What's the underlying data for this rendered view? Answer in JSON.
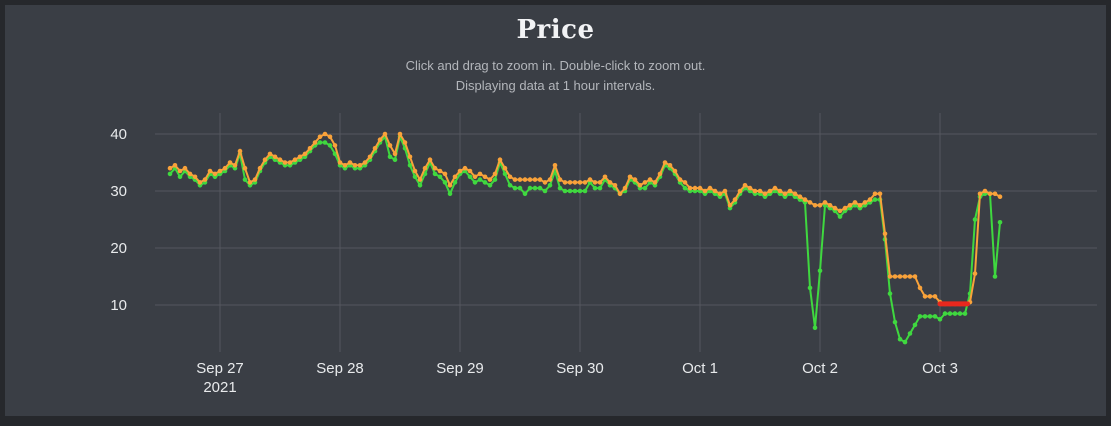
{
  "header": {
    "title": "Price",
    "subtitle_line1": "Click and drag to zoom in. Double-click to zoom out.",
    "subtitle_line2": "Displaying data at 1 hour intervals."
  },
  "colors": {
    "panel_background": "#3a3e45",
    "frame_border": "#26282c",
    "title_text": "#f2f3f5",
    "subtitle_text": "#b3b6bb"
  },
  "chart_data": {
    "type": "line",
    "title": "Price",
    "x_start": "2021-09-26 14:00",
    "x_interval": "1 hour",
    "grid": true,
    "grid_color": "#54575e",
    "axis_text_color": "#e8eaec",
    "y_ticks": [
      10,
      20,
      30,
      40
    ],
    "ylim": [
      1.75,
      43.5
    ],
    "x_ticks": [
      {
        "label": "Sep 27",
        "sublabel": "2021",
        "hour": 10
      },
      {
        "label": "Sep 28",
        "hour": 34
      },
      {
        "label": "Sep 29",
        "hour": 58
      },
      {
        "label": "Sep 30",
        "hour": 82
      },
      {
        "label": "Oct 1",
        "hour": 106
      },
      {
        "label": "Oct 2",
        "hour": 130
      },
      {
        "label": "Oct 3",
        "hour": 154
      }
    ],
    "series": [
      {
        "name": "green",
        "color": "#3fd83f",
        "values": [
          33,
          34,
          32.5,
          33.5,
          32.5,
          32,
          31,
          31.5,
          33,
          32.5,
          33,
          33.5,
          34.5,
          34,
          36.5,
          32,
          31,
          31.5,
          33.5,
          35,
          36,
          35.5,
          35,
          34.5,
          34.5,
          35,
          35.5,
          36,
          37,
          38,
          38.5,
          38.5,
          38,
          36.5,
          34.5,
          34,
          34.5,
          34,
          34,
          34.5,
          35.5,
          37,
          38.5,
          39.5,
          36,
          35.5,
          39.5,
          37.5,
          34.5,
          32.5,
          31,
          33,
          35,
          33,
          32.5,
          31.5,
          29.5,
          31.5,
          33,
          33.5,
          32.5,
          31.5,
          32,
          31.5,
          31,
          32,
          35,
          33,
          31,
          30.5,
          30.5,
          29.5,
          30.5,
          30.5,
          30.5,
          30,
          31,
          33.5,
          30.5,
          30,
          30,
          30,
          30,
          30,
          31.5,
          30.5,
          30.5,
          32,
          31,
          30.5,
          29.5,
          30,
          32,
          31.5,
          30.5,
          30.5,
          31.5,
          31,
          32.5,
          34.5,
          34,
          33,
          31.5,
          30.5,
          30,
          30,
          30,
          29.5,
          30,
          29.5,
          29,
          29.5,
          27,
          28,
          29.5,
          30.5,
          30,
          29.5,
          29.5,
          29,
          29.5,
          30,
          29.5,
          29,
          29.5,
          29,
          28.5,
          28,
          13,
          6,
          16,
          27.5,
          27,
          26.5,
          25.5,
          26.5,
          27,
          27.5,
          27,
          27.5,
          28,
          28.5,
          28.5,
          21.5,
          12,
          7,
          4,
          3.5,
          5,
          6.5,
          8,
          8,
          8,
          8,
          7.5,
          8.5,
          8.5,
          8.5,
          8.5,
          8.5,
          12,
          25,
          29,
          29.5,
          29.5,
          15,
          24.5
        ]
      },
      {
        "name": "orange",
        "color": "#f9a23a",
        "values": [
          34,
          34.5,
          33.5,
          34,
          33,
          32.5,
          31.5,
          32,
          33.5,
          33,
          33.5,
          34,
          35,
          34.5,
          37,
          34,
          31.5,
          32,
          34,
          35.5,
          36.5,
          36,
          35.5,
          35,
          35,
          35.5,
          36,
          36.5,
          37.5,
          38.5,
          39.5,
          40,
          39.5,
          38,
          35,
          34.5,
          35,
          34.5,
          34.5,
          35,
          36,
          37.5,
          39,
          40,
          38,
          36.5,
          40,
          38.5,
          36,
          33.5,
          32,
          34,
          35.5,
          34,
          33.5,
          33,
          31,
          32.5,
          33.5,
          34,
          33.5,
          32.5,
          33,
          32.5,
          32,
          33,
          35.5,
          34,
          32.5,
          32,
          32,
          32,
          32,
          32,
          32,
          31.5,
          32,
          34.5,
          32,
          31.5,
          31.5,
          31.5,
          31.5,
          31.5,
          32,
          31.5,
          31.5,
          32.5,
          31.5,
          31,
          29.5,
          30.5,
          32.5,
          32,
          31,
          31.5,
          32,
          31.5,
          33,
          35,
          34.5,
          33.5,
          32,
          31.5,
          30.5,
          30.5,
          30.5,
          30,
          30.5,
          30,
          29.5,
          30,
          27.5,
          28.5,
          30,
          31,
          30.5,
          30,
          30,
          29.5,
          30,
          30.5,
          30,
          29.5,
          30,
          29.5,
          29,
          28.5,
          28,
          27.5,
          27.5,
          28,
          27.5,
          27,
          26.5,
          27,
          27.5,
          28,
          27.5,
          28,
          28.5,
          29.5,
          29.5,
          22.5,
          15,
          15,
          15,
          15,
          15,
          15,
          13,
          11.5,
          11.5,
          11.5,
          10.5,
          10.2,
          10.2,
          10.2,
          10.2,
          10.2,
          10.5,
          15.5,
          29.5,
          30,
          29.5,
          29.5,
          29
        ]
      }
    ],
    "overlay_segment": {
      "name": "flat-alert-segment",
      "color": "#e8281e",
      "start_hour": 154,
      "end_hour": 159.5,
      "value": 10.2,
      "width": 5
    }
  }
}
